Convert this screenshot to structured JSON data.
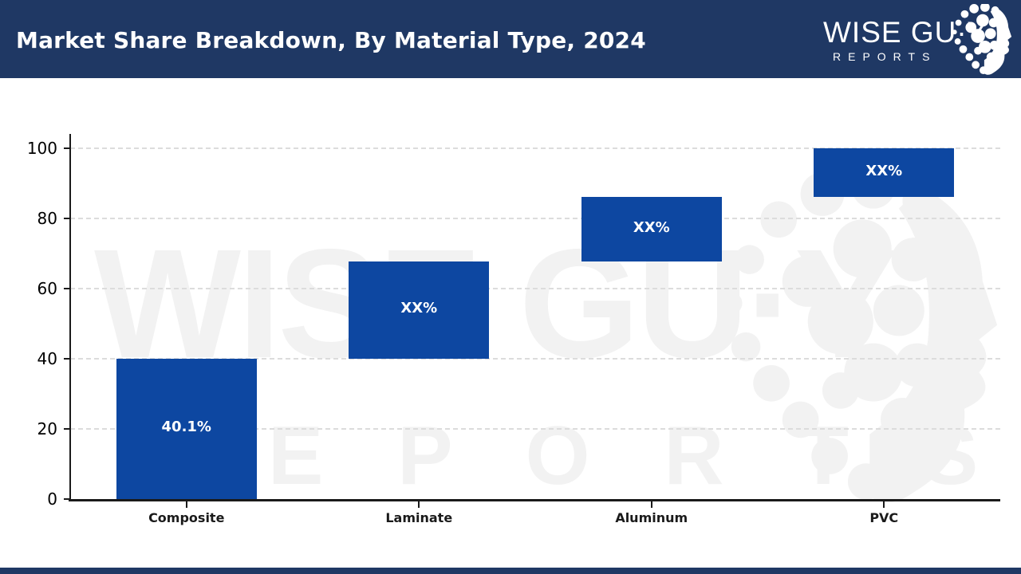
{
  "header": {
    "title": "Market Share Breakdown, By Material Type, 2024",
    "bg_color": "#1f3864",
    "logo": {
      "line1": "WISE GU·Y",
      "line2": "REPORTS"
    }
  },
  "watermark": {
    "line1": "WISE GU·Y",
    "line2": "R E P O R T S",
    "color": "#f2f2f2"
  },
  "chart_data": {
    "type": "bar",
    "subtype": "waterfall",
    "title": "Market Share Breakdown, By Material Type, 2024",
    "categories": [
      "Composite",
      "Laminate",
      "Aluminum",
      "PVC"
    ],
    "segments": [
      {
        "category": "Composite",
        "start": 0,
        "end": 40.1,
        "label": "40.1%"
      },
      {
        "category": "Laminate",
        "start": 40.1,
        "end": 67.7,
        "label": "XX%"
      },
      {
        "category": "Aluminum",
        "start": 67.7,
        "end": 86.1,
        "label": "XX%"
      },
      {
        "category": "PVC",
        "start": 86.1,
        "end": 100,
        "label": "XX%"
      }
    ],
    "xlabel": "",
    "ylabel": "",
    "ylim": [
      0,
      100
    ],
    "yticks": [
      0,
      20,
      40,
      60,
      80,
      100
    ],
    "grid": "horizontal-dashed",
    "legend": "none",
    "bar_color": "#0d47a1",
    "bar_label_color": "#ffffff"
  },
  "footer": {
    "bg_color": "#1f3864"
  }
}
